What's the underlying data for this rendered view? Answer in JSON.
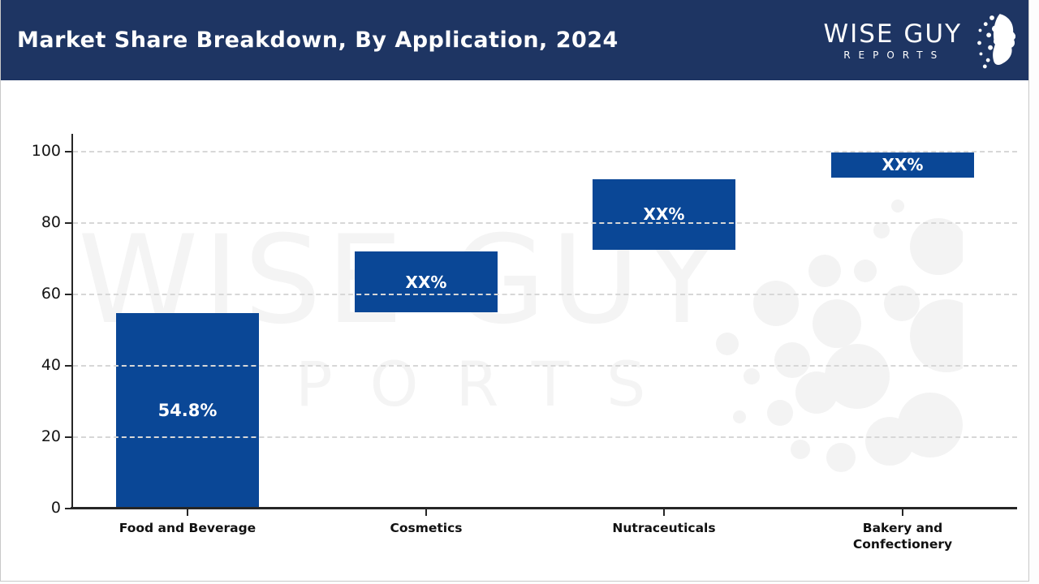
{
  "header": {
    "title": "Market Share Breakdown, By Application, 2024",
    "logo": {
      "line1": "WISE GUY",
      "line2": "REPORTS",
      "head_icon": "dotted-head-profile"
    }
  },
  "watermark": {
    "line1": "WISE GUY",
    "line2": "REPORTS"
  },
  "colors": {
    "header_bg": "#1e3563",
    "bar": "#0a4796",
    "gridline": "#d7d7d7",
    "axis": "#262626",
    "title_text": "#ffffff",
    "tick_text": "#141414",
    "value_label_text": "#ffffff",
    "card_border": "#c9c9c9",
    "watermark": "#f4f4f4"
  },
  "chart_data": {
    "type": "bar",
    "subtype": "waterfall",
    "title": "Market Share Breakdown, By Application, 2024",
    "xlabel": "",
    "ylabel": "",
    "categories": [
      "Food and Beverage",
      "Cosmetics",
      "Nutraceuticals",
      "Bakery and\nConfectionery"
    ],
    "segments": [
      {
        "category": "Food and Beverage",
        "start": 0,
        "end": 54.8,
        "label": "54.8%"
      },
      {
        "category": "Cosmetics",
        "start": 55.0,
        "end": 72.0,
        "label": "XX%"
      },
      {
        "category": "Nutraceuticals",
        "start": 72.5,
        "end": 92.3,
        "label": "XX%"
      },
      {
        "category": "Bakery and Confectionery",
        "start": 92.7,
        "end": 99.8,
        "label": "XX%"
      }
    ],
    "yticks": [
      0,
      20,
      40,
      60,
      80,
      100
    ],
    "ylim": [
      0,
      105
    ],
    "grid": "horizontal dashed, drawn above bars",
    "legend": "none"
  }
}
